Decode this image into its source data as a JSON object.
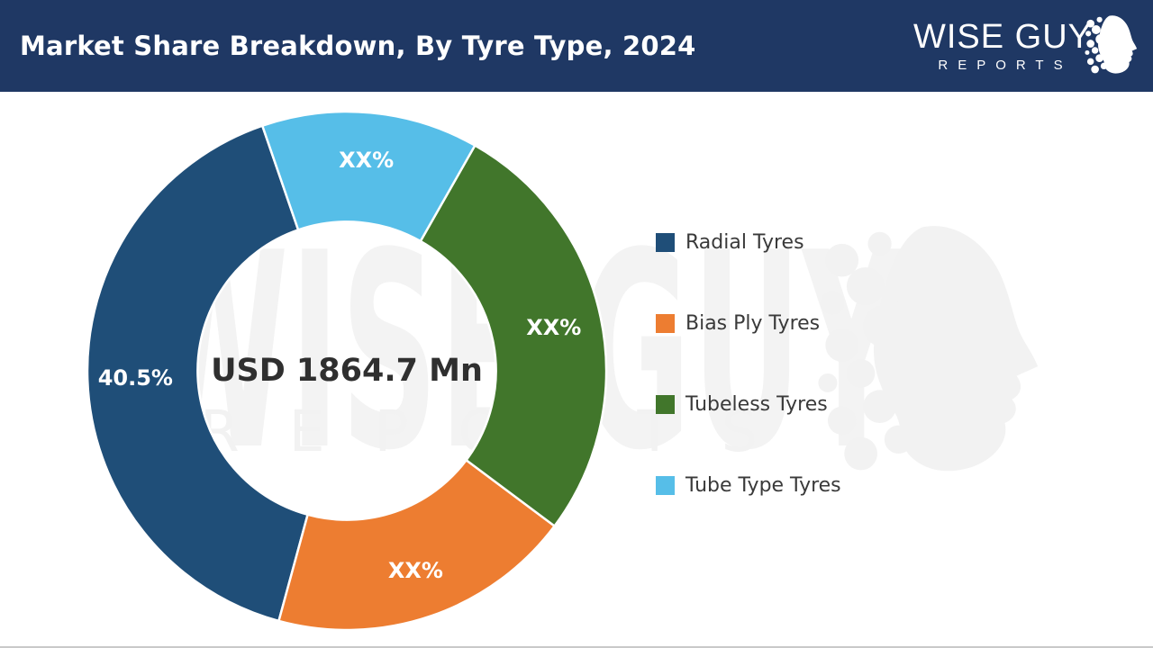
{
  "header": {
    "title": "Market Share Breakdown, By Tyre Type, 2024",
    "bg_color": "#1f3864",
    "logo": {
      "line1": "WISE GUY",
      "line2": "REPORTS"
    }
  },
  "watermark": {
    "line1": "WISE GUY",
    "line2": "REPORTS"
  },
  "chart_data": {
    "type": "pie",
    "subtype": "donut",
    "title": "Market Share Breakdown, By Tyre Type, 2024",
    "center_label": "USD 1864.7 Mn",
    "legend_position": "right",
    "start_angle_deg": 341,
    "direction": "counterclockwise",
    "inner_radius_ratio": 0.575,
    "segments": [
      {
        "name": "Radial Tyres",
        "label": "40.5%",
        "value_pct": 40.5,
        "color": "#1f4e78"
      },
      {
        "name": "Bias Ply Tyres",
        "label": "XX%",
        "value_pct": 19.0,
        "color": "#ed7d31"
      },
      {
        "name": "Tubeless Tyres",
        "label": "XX%",
        "value_pct": 27.0,
        "color": "#41762b"
      },
      {
        "name": "Tube Type Tyres",
        "label": "XX%",
        "value_pct": 13.5,
        "color": "#56bee8"
      }
    ]
  }
}
